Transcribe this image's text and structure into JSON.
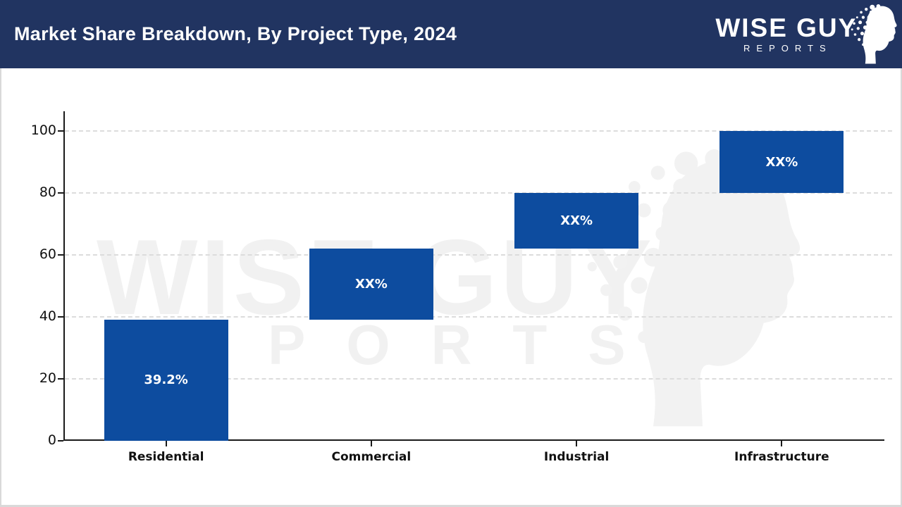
{
  "header": {
    "title": "Market Share Breakdown, By Project Type, 2024",
    "logo": {
      "line1": "WISE GUY",
      "line2": "REPORTS"
    }
  },
  "watermark": {
    "line1": "WISE GUY",
    "line2": "PORTS"
  },
  "colors": {
    "header_bg": "#213461",
    "bar": "#0d4c9f",
    "bar_label": "#ffffff",
    "grid": "#dcdcdc",
    "axis": "#1a1a1a",
    "tick_label": "#111111",
    "watermark": "#f1f1f1"
  },
  "chart_data": {
    "type": "bar",
    "subtype": "waterfall",
    "title": "Market Share Breakdown, By Project Type, 2024",
    "xlabel": "",
    "ylabel": "",
    "ylim": [
      0,
      100
    ],
    "yticks": [
      0,
      20,
      40,
      60,
      80,
      100
    ],
    "grid": "horizontal-dashed",
    "legend": "none",
    "categories": [
      "Residential",
      "Commercial",
      "Industrial",
      "Infrastructure"
    ],
    "segments": [
      {
        "category": "Residential",
        "start": 0,
        "end": 39.2,
        "label": "39.2%"
      },
      {
        "category": "Commercial",
        "start": 39.2,
        "end": 62,
        "label": "XX%"
      },
      {
        "category": "Industrial",
        "start": 62,
        "end": 80,
        "label": "XX%"
      },
      {
        "category": "Infrastructure",
        "start": 80,
        "end": 100,
        "label": "XX%"
      }
    ]
  }
}
